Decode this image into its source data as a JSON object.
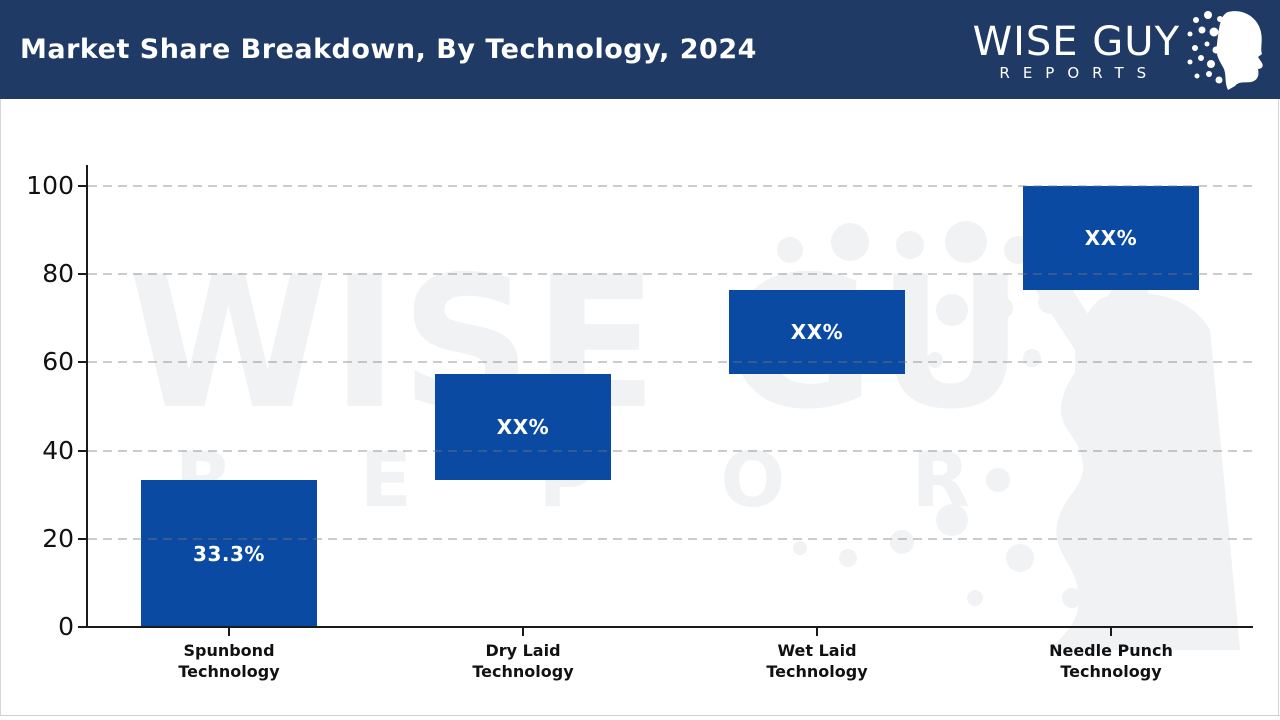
{
  "header": {
    "title": "Market Share Breakdown, By Technology, 2024",
    "bg_color": "#203a66",
    "logo": {
      "line1": "WISE GUY",
      "line2": "REPORTS"
    }
  },
  "watermark": {
    "line1": "WISE GUY",
    "line2": "R E P O R T S"
  },
  "chart_data": {
    "type": "bar",
    "subtype": "floating-waterfall",
    "title": "Market Share Breakdown, By Technology, 2024",
    "xlabel": "",
    "ylabel": "",
    "ylim": [
      0,
      105
    ],
    "yticks": [
      0,
      20,
      40,
      60,
      80,
      100
    ],
    "grid": "horizontal-dashed",
    "legend": "none",
    "bar_color": "#0b4aa2",
    "categories": [
      [
        "Spunbond",
        "Technology"
      ],
      [
        "Dry Laid",
        "Technology"
      ],
      [
        "Wet Laid",
        "Technology"
      ],
      [
        "Needle Punch",
        "Technology"
      ]
    ],
    "segments": [
      {
        "category": "Spunbond Technology",
        "start": 0,
        "end": 33.3,
        "value": 33.3,
        "value_label": "33.3%"
      },
      {
        "category": "Dry Laid Technology",
        "start": 33.3,
        "end": 57.4,
        "value": 24.1,
        "value_label": "XX%"
      },
      {
        "category": "Wet Laid Technology",
        "start": 57.4,
        "end": 76.4,
        "value": 19.0,
        "value_label": "XX%"
      },
      {
        "category": "Needle Punch Technology",
        "start": 76.4,
        "end": 100,
        "value": 23.6,
        "value_label": "XX%"
      }
    ]
  }
}
